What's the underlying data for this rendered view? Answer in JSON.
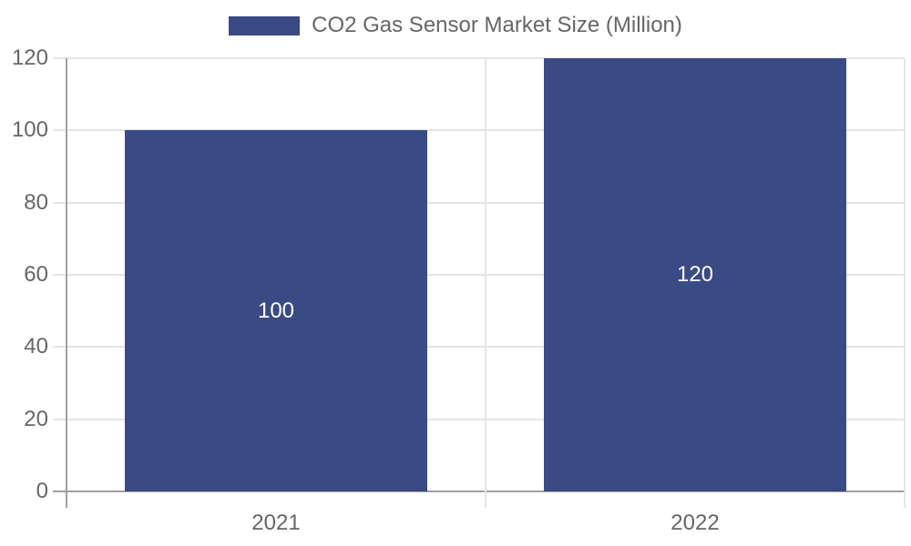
{
  "page": {
    "background": "#ffffff"
  },
  "legend": {
    "label": "CO2 Gas Sensor Market Size (Million)"
  },
  "chart_data": {
    "type": "bar",
    "title": "CO2 Gas Sensor Market Size (Million)",
    "categories": [
      "2021",
      "2022"
    ],
    "series": [
      {
        "name": "CO2 Gas Sensor Market Size (Million)",
        "values": [
          100,
          120
        ]
      }
    ],
    "value_labels": [
      "100",
      "120"
    ],
    "xlabel": "",
    "ylabel": "",
    "ylim": [
      0,
      120
    ],
    "yticks": [
      0,
      20,
      40,
      60,
      80,
      100,
      120
    ],
    "grid": true,
    "legend_position": "top-center",
    "bar_width_fraction": 0.72,
    "colors": {
      "bar": "#3a4a85",
      "grid_line": "#e5e5e5",
      "axis_line": "#a0a0a0",
      "tick_text": "#666666",
      "value_label": "#ffffff"
    }
  }
}
